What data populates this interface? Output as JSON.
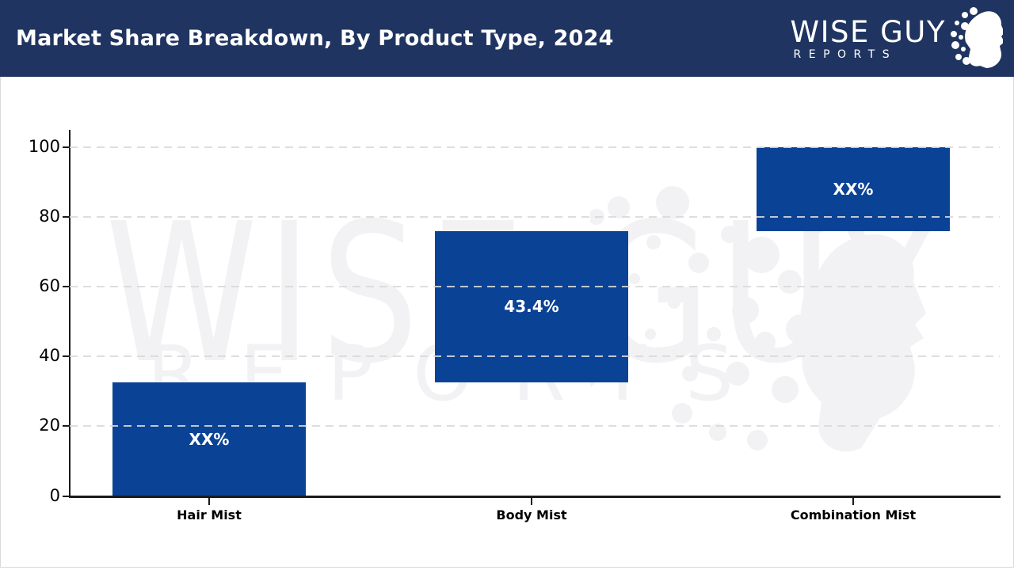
{
  "header": {
    "title": "Market Share Breakdown, By Product Type, 2024",
    "logo": {
      "line1": "WISE GUY",
      "line2": "REPORTS"
    }
  },
  "watermark": {
    "line1": "WISE GUY",
    "line2": "REPORTS"
  },
  "colors": {
    "header_bg": "#1F3460",
    "bar_fill": "#0A4296",
    "bar_label_text": "#FFFFFF",
    "gridline": "#D9D9D9",
    "axis": "#1A1A1A",
    "watermark": "#F2F2F4"
  },
  "chart_data": {
    "type": "bar",
    "subtype": "floating-segment column chart (stacked market-share breakdown)",
    "title": "Market Share Breakdown, By Product Type, 2024",
    "categories": [
      "Hair Mist",
      "Body Mist",
      "Combination Mist"
    ],
    "series": [
      {
        "name": "Market share (%)",
        "bars": [
          {
            "category": "Hair Mist",
            "start": 0,
            "end": 32.6,
            "label": "XX%"
          },
          {
            "category": "Body Mist",
            "start": 32.6,
            "end": 76,
            "label": "43.4%"
          },
          {
            "category": "Combination Mist",
            "start": 76,
            "end": 100,
            "label": "XX%"
          }
        ]
      }
    ],
    "xlabel": "",
    "ylabel": "",
    "yticks": [
      0,
      20,
      40,
      60,
      80,
      100
    ],
    "ylim": [
      0,
      105
    ],
    "grid": "horizontal dashed gridlines at each y tick",
    "legend": "none"
  }
}
